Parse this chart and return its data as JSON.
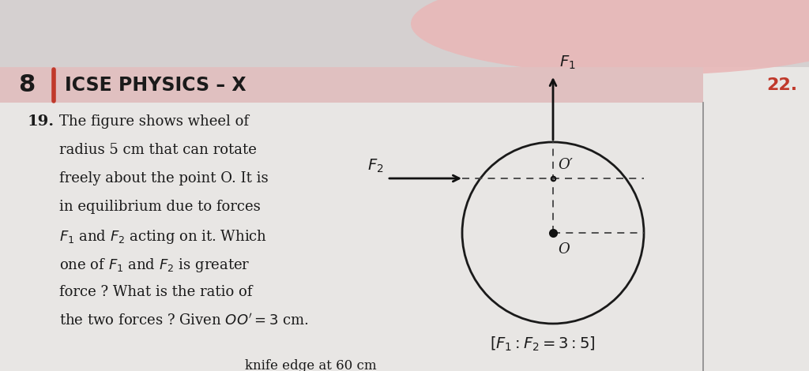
{
  "bg_top_color": "#d8d4d4",
  "bg_main_color": "#e8e6e6",
  "pink_arc_color": "#e8b8b8",
  "header_bar_color": "#e0c0c0",
  "header_num": "8",
  "header_divider_color": "#c0392b",
  "header_text": "ICSE PHYSICS – X",
  "header_right_num": "22.",
  "header_right_color": "#c0392b",
  "question_num": "19.",
  "question_lines": [
    "The figure shows wheel of",
    "radius 5 cm that can rotate",
    "freely about the point O. It is",
    "in equilibrium due to forces",
    "$F_1$ and $F_2$ acting on it. Which",
    "one of $F_1$ and $F_2$ is greater",
    "force ? What is the ratio of",
    "the two forces ? Given $OO' = 3$ cm."
  ],
  "answer_text": "[$F_1 : F_2 = 3 : 5$]",
  "bottom_partial": "knife edge at 60 cm",
  "text_color": "#1a1a1a",
  "dashed_color": "#444444",
  "arrow_color": "#111111",
  "divider_line_color": "#888888"
}
